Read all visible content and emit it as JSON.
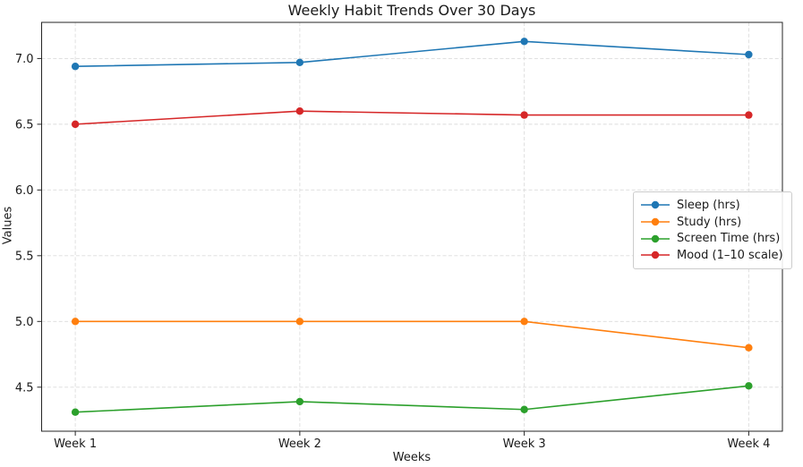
{
  "chart_data": {
    "type": "line",
    "title": "Weekly Habit Trends Over 30 Days",
    "xlabel": "Weeks",
    "ylabel": "Values",
    "categories": [
      "Week 1",
      "Week 2",
      "Week 3",
      "Week 4"
    ],
    "series": [
      {
        "name": "Sleep (hrs)",
        "color": "#1f77b4",
        "values": [
          6.94,
          6.97,
          7.13,
          7.03
        ]
      },
      {
        "name": "Study (hrs)",
        "color": "#ff7f0e",
        "values": [
          5.0,
          5.0,
          5.0,
          4.8
        ]
      },
      {
        "name": "Screen Time (hrs)",
        "color": "#2ca02c",
        "values": [
          4.31,
          4.39,
          4.33,
          4.51
        ]
      },
      {
        "name": "Mood (1–10 scale)",
        "color": "#d62728",
        "values": [
          6.5,
          6.6,
          6.57,
          6.57
        ]
      }
    ],
    "ylim": [
      4.165,
      7.275
    ],
    "yticks": [
      4.5,
      5.0,
      5.5,
      6.0,
      6.5,
      7.0
    ],
    "ytick_labels": [
      "4.5",
      "5.0",
      "5.5",
      "6.0",
      "6.5",
      "7.0"
    ],
    "grid": "dashed",
    "grid_color": "#dcdcdc",
    "spine_color": "#262626",
    "legend_position": "center-right",
    "marker": "circle"
  }
}
